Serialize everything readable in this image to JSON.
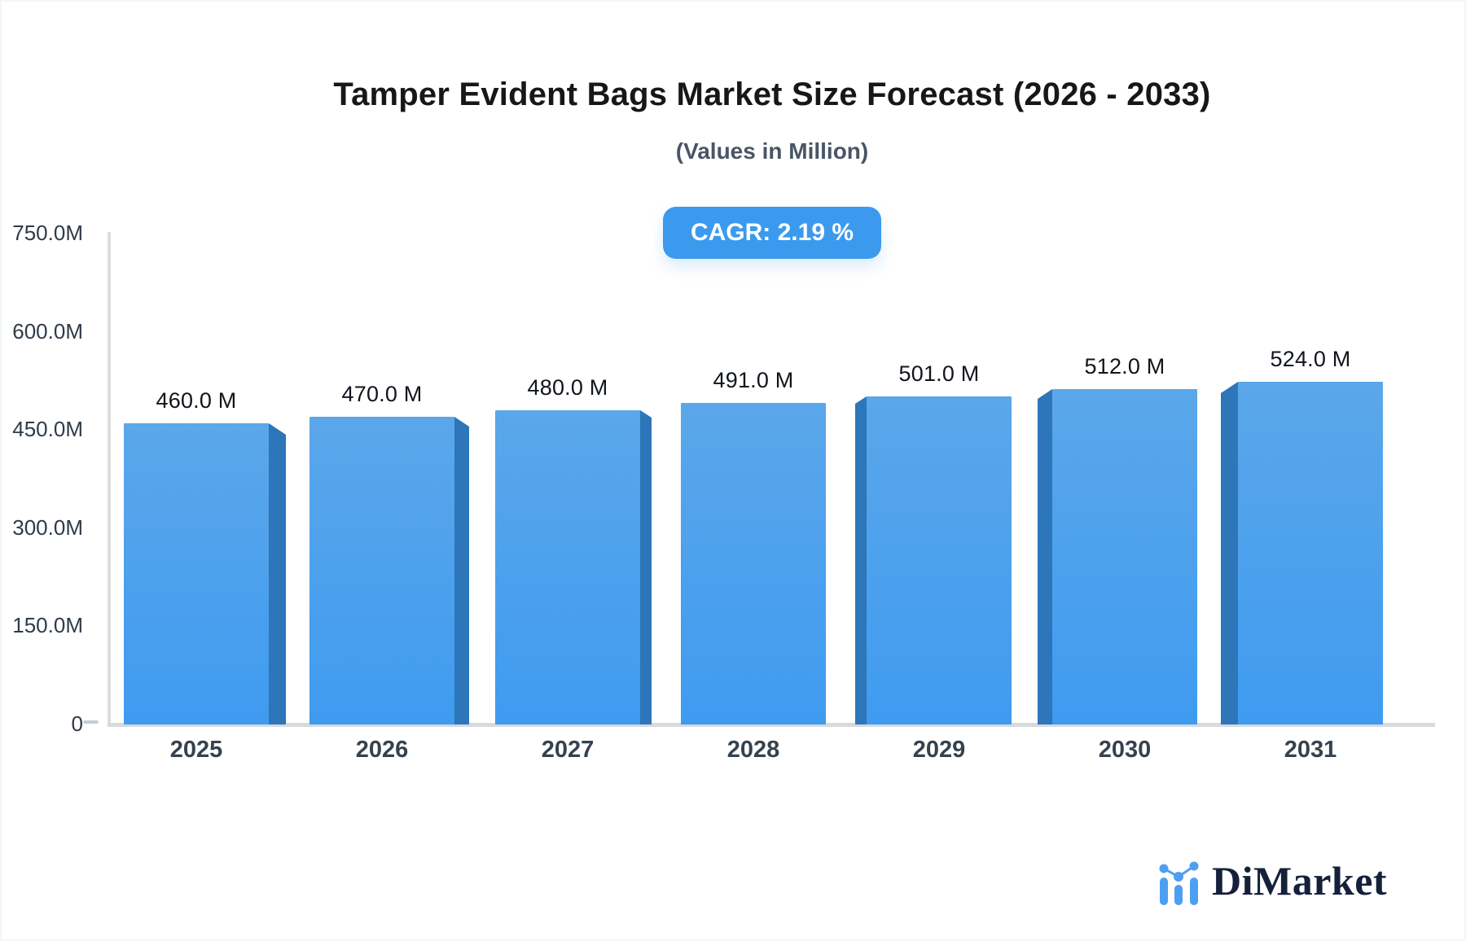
{
  "page": {
    "background": "#ffffff"
  },
  "chart_data": {
    "type": "bar",
    "title": "Tamper Evident Bags Market Size Forecast (2026 - 2033)",
    "subtitle": "(Values in Million)",
    "cagr_label": "CAGR: 2.19 %",
    "unit": "Million",
    "categories": [
      "2025",
      "2026",
      "2027",
      "2028",
      "2029",
      "2030",
      "2031"
    ],
    "values": [
      460.0,
      470.0,
      480.0,
      491.0,
      501.0,
      512.0,
      524.0
    ],
    "value_labels": [
      "460.0 M",
      "470.0 M",
      "480.0 M",
      "491.0 M",
      "501.0 M",
      "512.0 M",
      "524.0 M"
    ],
    "y_axis": {
      "ylim": [
        0,
        750
      ],
      "ticks": [
        0,
        150,
        300,
        450,
        600,
        750
      ],
      "tick_labels": [
        "0",
        "150.0M",
        "300.0M",
        "450.0M",
        "600.0M",
        "750.0M"
      ]
    },
    "layout": {
      "grid": false,
      "legend": "none",
      "bar_style": "3d-perspective-center"
    },
    "colors": {
      "bar_top": "#5BA7EA",
      "bar_bottom": "#3F9BF0",
      "bar_side": "#2C76B9",
      "accent": "#3B9AEE",
      "axis_line": "#D7DBDE",
      "title_text": "#171717",
      "subtitle_text": "#4A5565",
      "tick_text": "#2F3B49",
      "value_text": "#10151C",
      "badge_text": "#FFFFFF"
    }
  },
  "footer": {
    "brand": "DiMarket",
    "logo_blue": "#4D9FF2",
    "logo_navy": "#15203A"
  }
}
